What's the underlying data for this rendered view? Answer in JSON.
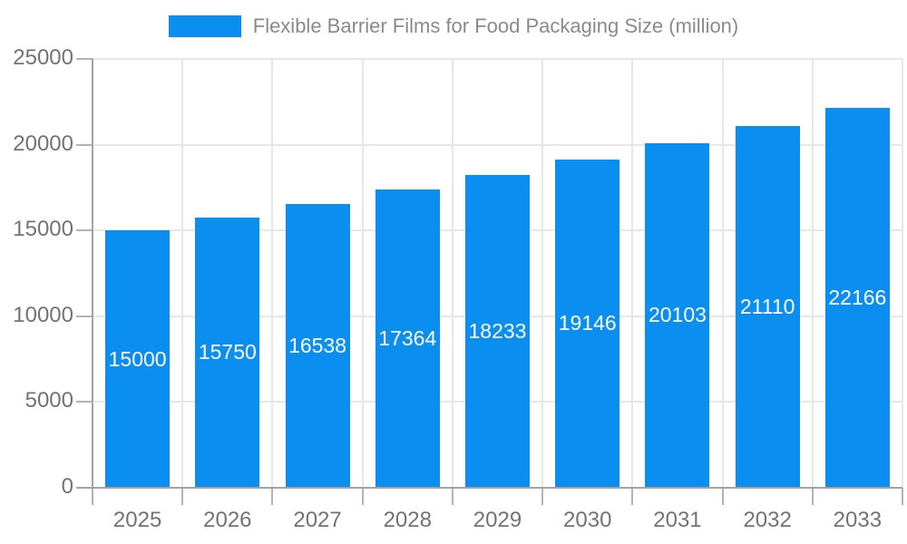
{
  "chart_data": {
    "type": "bar",
    "title": "Flexible Barrier Films for Food Packaging Size (million)",
    "legend": [
      "Flexible Barrier Films for Food Packaging Size (million)"
    ],
    "legend_position": "top",
    "categories": [
      "2025",
      "2026",
      "2027",
      "2028",
      "2029",
      "2030",
      "2031",
      "2032",
      "2033"
    ],
    "values": [
      15000,
      15750,
      16538,
      17364,
      18233,
      19146,
      20103,
      21110,
      22166
    ],
    "xlabel": "",
    "ylabel": "",
    "ylim": [
      0,
      25000
    ],
    "y_ticks": [
      0,
      5000,
      10000,
      15000,
      20000,
      25000
    ],
    "grid": true,
    "bar_labels_shown": true,
    "colors": {
      "bar": "#0a8ff0",
      "bar_label_text": "#ffffff",
      "axis": "#a3a3a3",
      "tick_mark": "#b3b3b3",
      "grid": "#e7e7e7",
      "tick_text": "#737373",
      "title_text": "#8a8a8a",
      "background": "#ffffff"
    }
  }
}
